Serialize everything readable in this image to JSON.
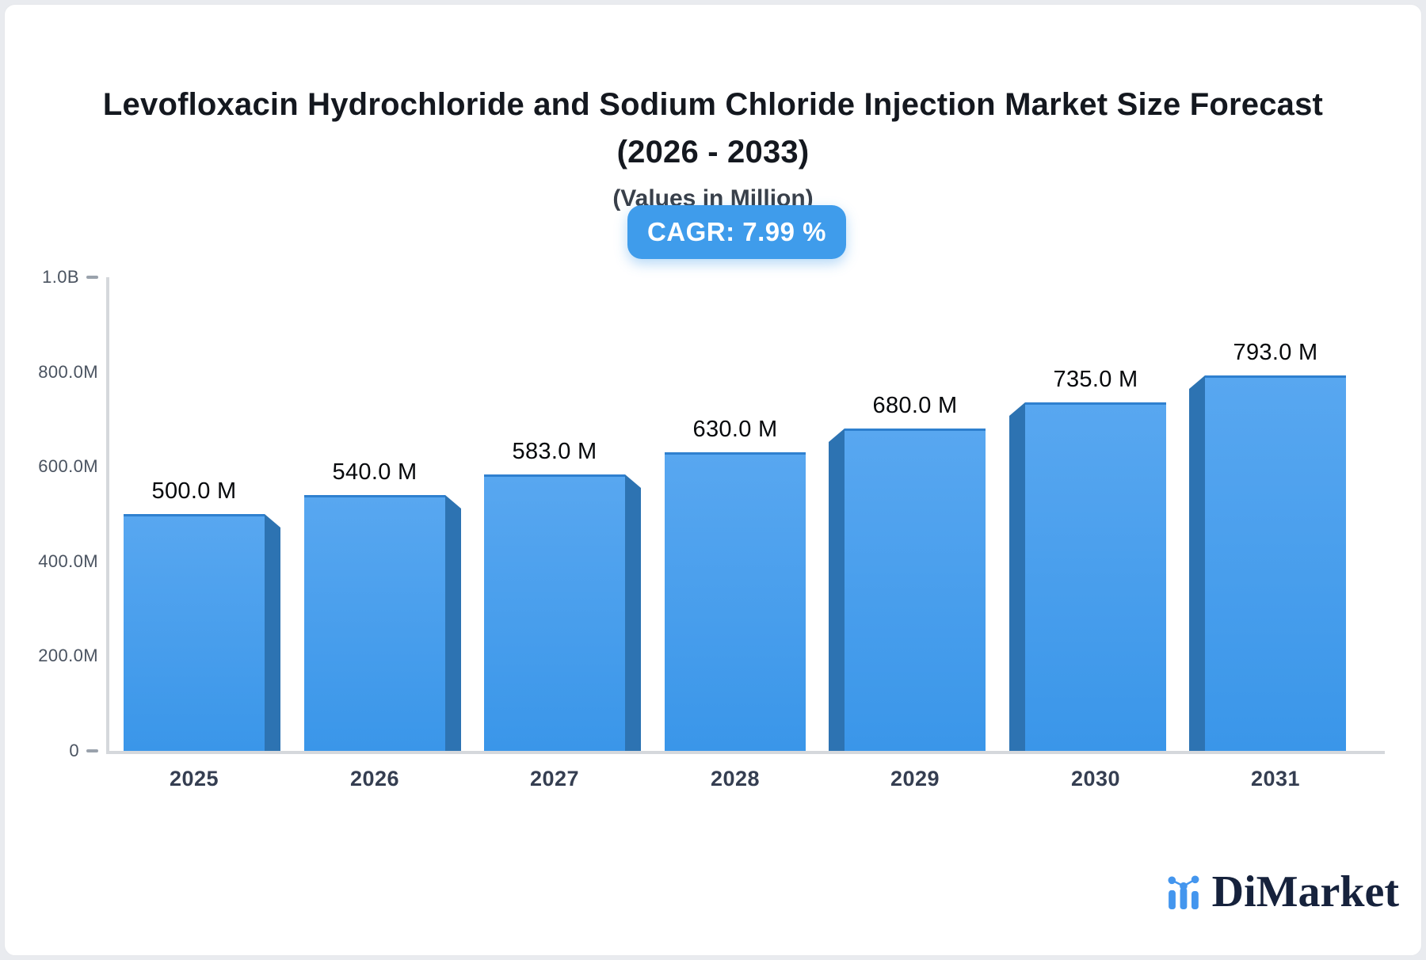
{
  "header": {
    "title_line1": "Levofloxacin Hydrochloride and Sodium Chloride Injection Market Size Forecast",
    "title_line2": "(2026 - 2033)",
    "subtitle": "(Values in Million)",
    "badge": {
      "label": "CAGR: 7.99 %",
      "bg": "#3f9ceb",
      "text_color": "#ffffff"
    }
  },
  "chart_data": {
    "type": "bar",
    "categories": [
      "2025",
      "2026",
      "2027",
      "2028",
      "2029",
      "2030",
      "2031"
    ],
    "values": [
      500.0,
      540.0,
      583.0,
      630.0,
      680.0,
      735.0,
      793.0
    ],
    "bar_labels": [
      "500.0 M",
      "540.0 M",
      "583.0 M",
      "630.0 M",
      "680.0 M",
      "735.0 M",
      "793.0 M"
    ],
    "unit": "Million",
    "title": "Levofloxacin Hydrochloride and Sodium Chloride Injection Market Size Forecast (2026 - 2033)",
    "xlabel": "",
    "ylabel": "",
    "ylim": [
      0,
      1000
    ],
    "grid": false,
    "legend": false,
    "y_ticks": [
      {
        "label": "1.0B",
        "value": 1000,
        "dash": true
      },
      {
        "label": "800.0M",
        "value": 800,
        "dash": false
      },
      {
        "label": "600.0M",
        "value": 600,
        "dash": false
      },
      {
        "label": "400.0M",
        "value": 400,
        "dash": false
      },
      {
        "label": "200.0M",
        "value": 200,
        "dash": false
      },
      {
        "label": "0",
        "value": 0,
        "dash": true
      }
    ],
    "colors": {
      "face_top": "#58a7f0",
      "face_bottom": "#3a96e9",
      "face_edge": "#2f80cf",
      "side_panel": "#2d73b2",
      "axis_line": "#d5d8dc",
      "tick_dash": "#9aa2ac",
      "value_label": "#06080b",
      "year_label": "#353e51",
      "ytick_label": "#4a5360"
    }
  },
  "logo": {
    "text": "DiMarket",
    "text_color": "#16223c",
    "icon_color": "#4496ee",
    "icon": "bar-chart-icon"
  }
}
